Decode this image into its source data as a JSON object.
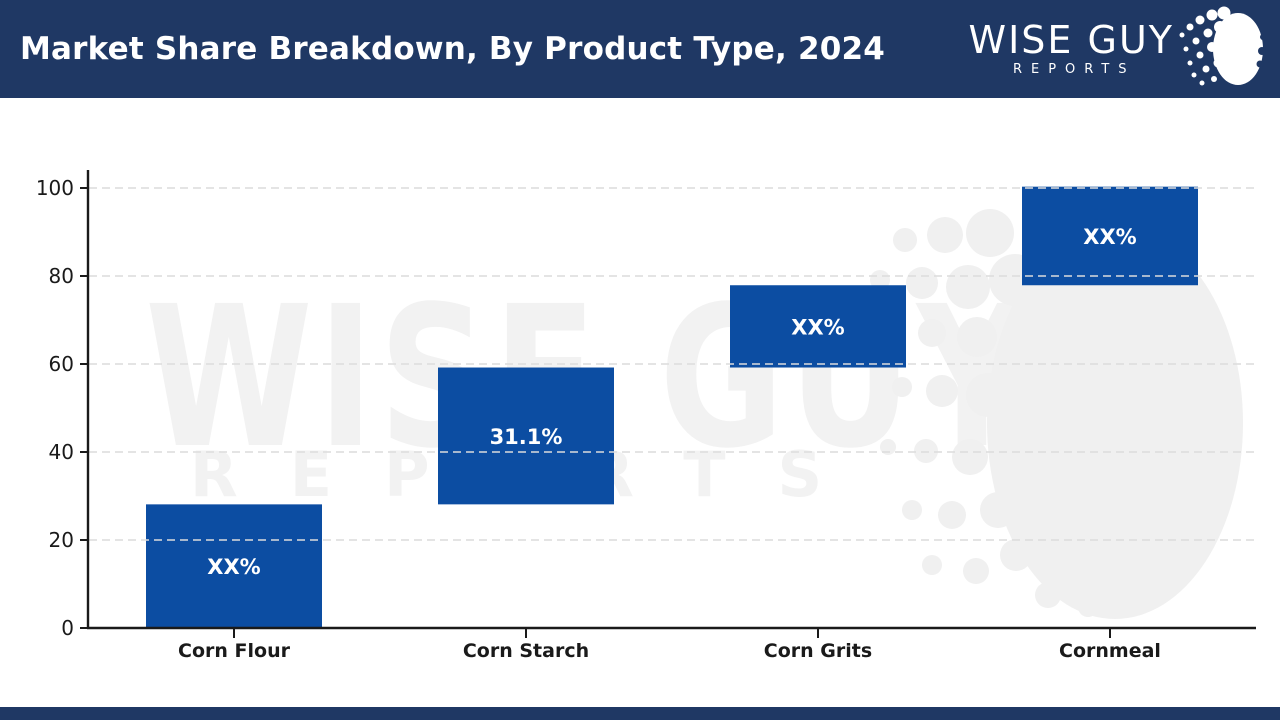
{
  "header": {
    "title": "Market Share Breakdown, By Product Type, 2024",
    "logo": {
      "line1": "WISE GUY",
      "line2": "REPORTS"
    }
  },
  "watermark": {
    "line1": "WISE GUY",
    "line2": "REPORTS"
  },
  "chart_data": {
    "type": "bar",
    "variant": "waterfall-floating-segments",
    "title": "Market Share Breakdown, By Product Type, 2024",
    "categories": [
      "Corn Flour",
      "Corn Starch",
      "Corn Grits",
      "Cornmeal"
    ],
    "segments": [
      {
        "category": "Corn Flour",
        "start": 0,
        "end": 28.1,
        "label": "XX%"
      },
      {
        "category": "Corn Starch",
        "start": 28.1,
        "end": 59.2,
        "label": "31.1%"
      },
      {
        "category": "Corn Grits",
        "start": 59.2,
        "end": 77.9,
        "label": "XX%"
      },
      {
        "category": "Cornmeal",
        "start": 77.9,
        "end": 100.3,
        "label": "XX%"
      }
    ],
    "xlabel": "",
    "ylabel": "",
    "ylim": [
      0,
      105
    ],
    "yticks": [
      0,
      20,
      40,
      60,
      80,
      100
    ],
    "grid": "horizontal-dashed",
    "grid_above_bars": true,
    "legend": "none",
    "colors": {
      "bar": "#0c4da2",
      "bar_label": "#ffffff",
      "axis": "#1a1a1a",
      "gridline": "#dcdcdc",
      "tick_label": "#1a1a1a"
    }
  },
  "theme": {
    "header_bg": "#1f3864",
    "footer_bg": "#1f3864",
    "page_bg": "#ffffff",
    "watermark_color": "#f2f2f2"
  }
}
